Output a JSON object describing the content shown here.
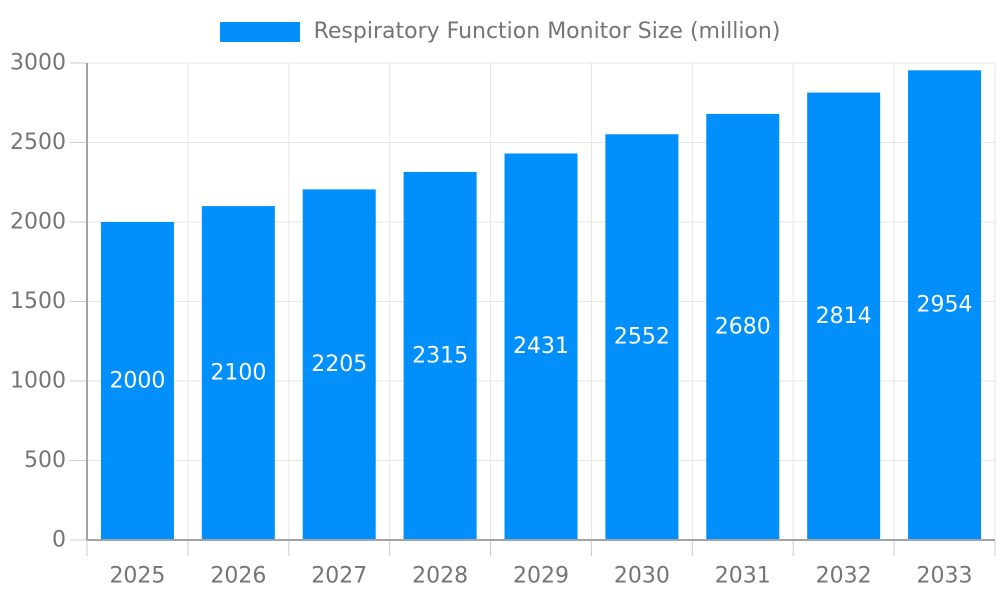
{
  "legend": {
    "series_label": "Respiratory Function Monitor Size (million)"
  },
  "colors": {
    "bar": "#008ffb",
    "bar_label": "#ffffff",
    "grid_line": "#e6e6e6",
    "axis_line": "#a3a3a3",
    "tick_mark": "#cccccc",
    "axis_text": "#757575",
    "background": "#ffffff"
  },
  "chart_data": {
    "type": "bar",
    "title": "Respiratory Function Monitor Size (million)",
    "categories": [
      "2025",
      "2026",
      "2027",
      "2028",
      "2029",
      "2030",
      "2031",
      "2032",
      "2033"
    ],
    "values": [
      2000,
      2100,
      2205,
      2315,
      2431,
      2552,
      2680,
      2814,
      2954
    ],
    "series": [
      {
        "name": "Respiratory Function Monitor Size (million)",
        "values": [
          2000,
          2100,
          2205,
          2315,
          2431,
          2552,
          2680,
          2814,
          2954
        ]
      }
    ],
    "xlabel": "",
    "ylabel": "",
    "ylim": [
      0,
      3000
    ],
    "yticks": [
      0,
      500,
      1000,
      1500,
      2000,
      2500,
      3000
    ],
    "grid": true,
    "legend_position": "top",
    "value_label_position": "inside-center"
  }
}
